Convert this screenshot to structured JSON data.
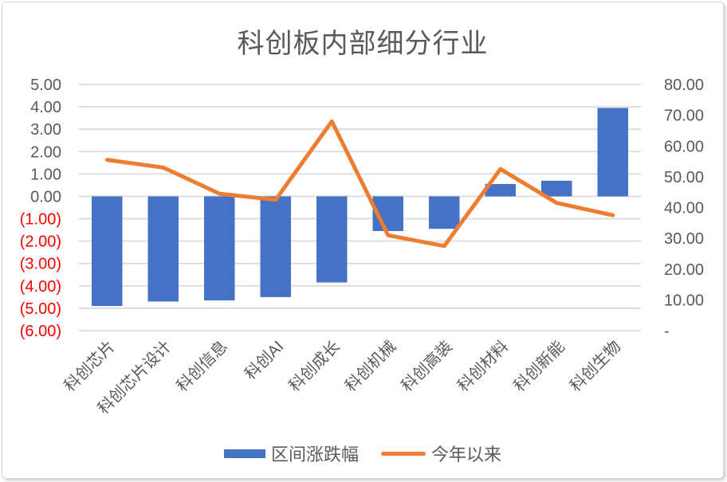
{
  "chart_data": {
    "type": "combo",
    "title": "科创板内部细分行业",
    "categories": [
      "科创芯片",
      "科创芯片设计",
      "科创信息",
      "科创AI",
      "科创成长",
      "科创机械",
      "科创高装",
      "科创材料",
      "科创新能",
      "科创生物"
    ],
    "series": [
      {
        "name": "区间涨跌幅",
        "type": "bar",
        "axis": "left",
        "color": "#4472C4",
        "values": [
          -4.9,
          -4.7,
          -4.65,
          -4.5,
          -3.85,
          -1.55,
          -1.45,
          0.55,
          0.7,
          3.95
        ]
      },
      {
        "name": "今年以来",
        "type": "line",
        "axis": "right",
        "color": "#ED7D31",
        "values": [
          55.5,
          53,
          44.5,
          42.5,
          68,
          31,
          27.5,
          52.5,
          41.5,
          37.5
        ]
      }
    ],
    "left_axis": {
      "min": -6,
      "max": 5,
      "ticks": [
        {
          "label": "5.00",
          "value": 5,
          "negative": false
        },
        {
          "label": "4.00",
          "value": 4,
          "negative": false
        },
        {
          "label": "3.00",
          "value": 3,
          "negative": false
        },
        {
          "label": "2.00",
          "value": 2,
          "negative": false
        },
        {
          "label": "1.00",
          "value": 1,
          "negative": false
        },
        {
          "label": "0.00",
          "value": 0,
          "negative": false
        },
        {
          "label": "(1.00)",
          "value": -1,
          "negative": true
        },
        {
          "label": "(2.00)",
          "value": -2,
          "negative": true
        },
        {
          "label": "(3.00)",
          "value": -3,
          "negative": true
        },
        {
          "label": "(4.00)",
          "value": -4,
          "negative": true
        },
        {
          "label": "(5.00)",
          "value": -5,
          "negative": true
        },
        {
          "label": "(6.00)",
          "value": -6,
          "negative": true
        }
      ]
    },
    "right_axis": {
      "min": 0,
      "max": 80,
      "ticks": [
        {
          "label": "80.00",
          "value": 80
        },
        {
          "label": "70.00",
          "value": 70
        },
        {
          "label": "60.00",
          "value": 60
        },
        {
          "label": "50.00",
          "value": 50
        },
        {
          "label": "40.00",
          "value": 40
        },
        {
          "label": "30.00",
          "value": 30
        },
        {
          "label": "20.00",
          "value": 20
        },
        {
          "label": "10.00",
          "value": 10
        },
        {
          "label": "-",
          "value": 0
        }
      ]
    },
    "grid": true,
    "legend_position": "bottom"
  },
  "legend": {
    "items": [
      {
        "label": "区间涨跌幅",
        "swatch": "bar",
        "color": "#4472C4"
      },
      {
        "label": "今年以来",
        "swatch": "line",
        "color": "#ED7D31"
      }
    ]
  },
  "colors": {
    "title_text": "#595959",
    "axis_text": "#595959",
    "negative_tick_text": "#FF0000",
    "category_text": "#595959",
    "gridline": "#DBDBDB",
    "bar": "#4472C4",
    "line": "#ED7D31"
  }
}
